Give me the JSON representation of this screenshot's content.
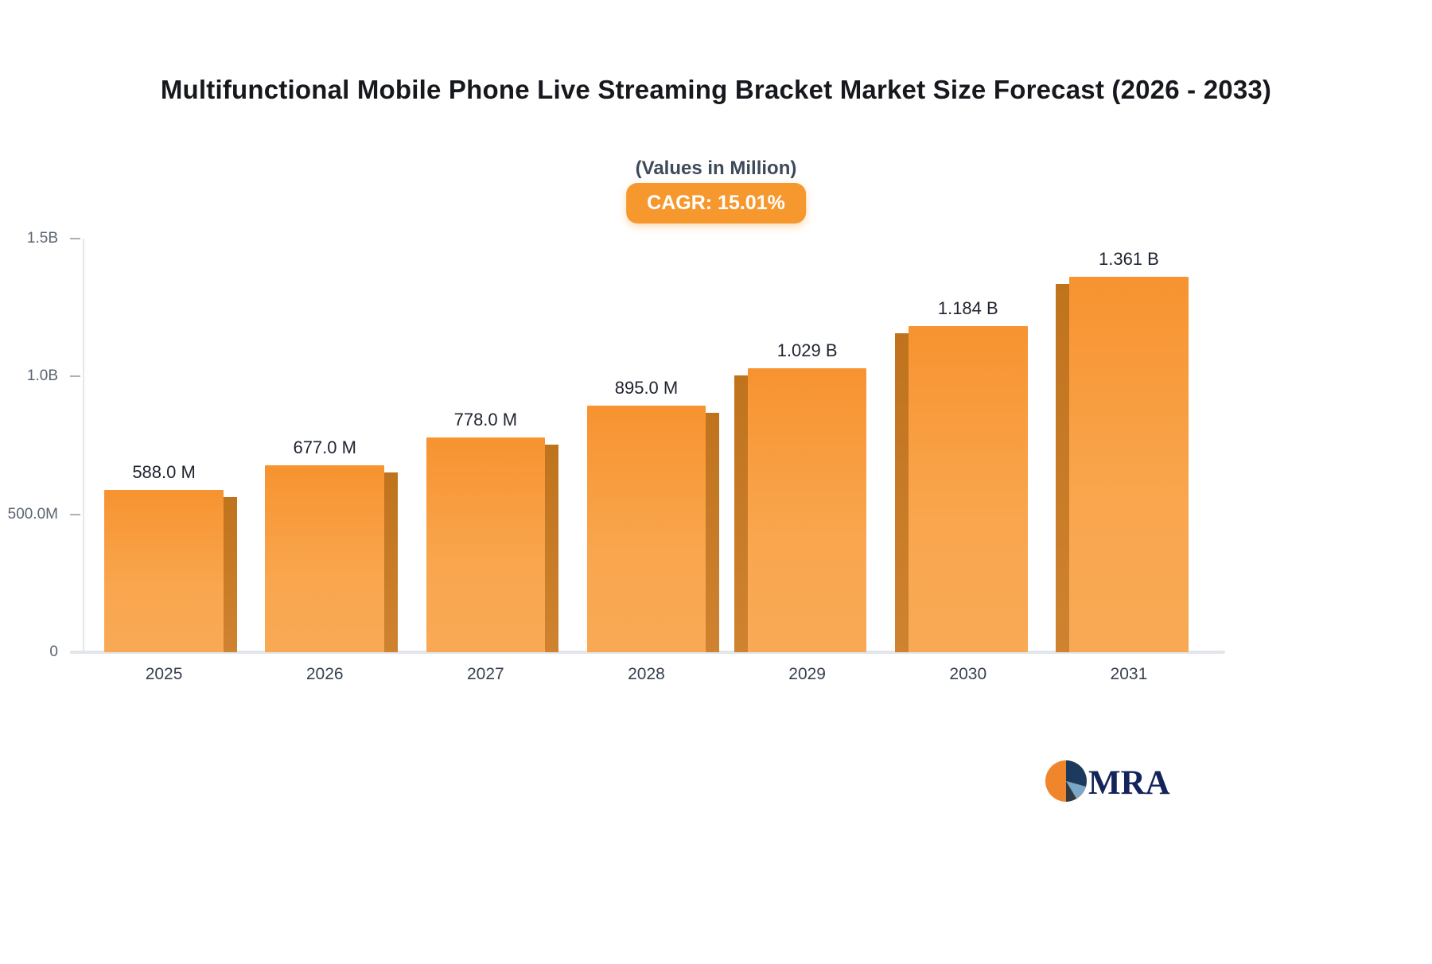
{
  "header": {
    "title": "Multifunctional Mobile Phone Live Streaming Bracket Market Size Forecast (2026 - 2033)",
    "subtitle": "(Values in Million)",
    "cagr_badge": "CAGR: 15.01%"
  },
  "chart_data": {
    "type": "bar",
    "title": "Multifunctional Mobile Phone Live Streaming Bracket Market Size Forecast (2026 - 2033)",
    "subtitle": "(Values in Million)",
    "unit": "Million",
    "cagr": "15.01%",
    "categories": [
      "2025",
      "2026",
      "2027",
      "2028",
      "2029",
      "2030",
      "2031"
    ],
    "values": [
      588,
      677,
      778,
      895,
      1029,
      1184,
      1361
    ],
    "value_labels": [
      "588.0 M",
      "677.0 M",
      "778.0 M",
      "895.0 M",
      "1.029 B",
      "1.184 B",
      "1.361 B"
    ],
    "ylim": [
      0,
      1500
    ],
    "yticks": [
      {
        "label": "1.5B",
        "value": 1500
      },
      {
        "label": "1.0B",
        "value": 1000
      },
      {
        "label": "500.0M",
        "value": 500
      },
      {
        "label": "0",
        "value": 0
      }
    ],
    "xlabel": "",
    "ylabel": "",
    "grid": false,
    "legend_position": "none",
    "bar_color": "#f79a3c",
    "bar_side_color": "#c0731d",
    "badge_color": "#f7982f"
  },
  "logo": {
    "text": "MRA"
  }
}
